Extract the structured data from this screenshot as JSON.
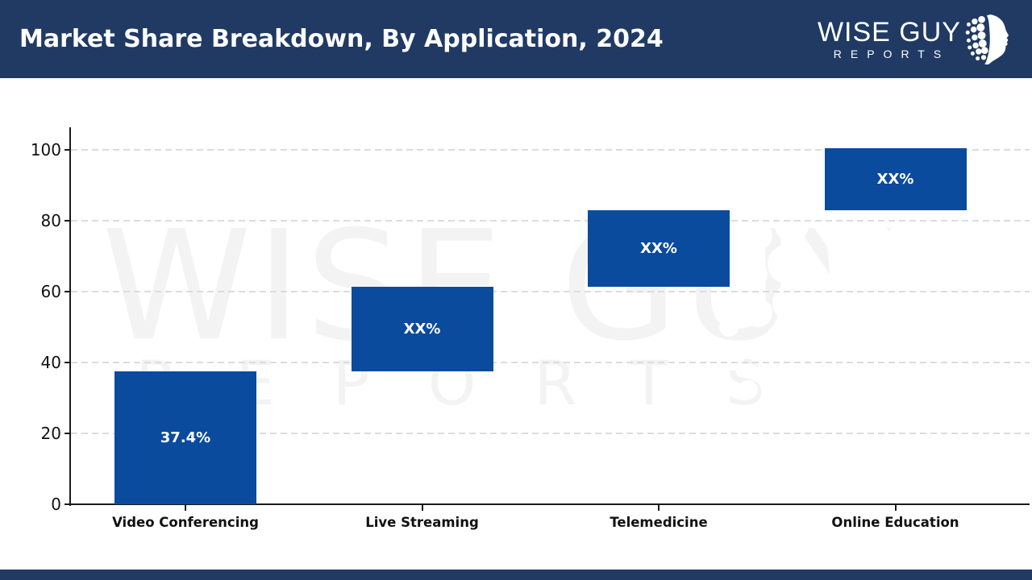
{
  "header": {
    "title": "Market Share Breakdown, By Application, 2024",
    "logo": {
      "line1": "WISE GUY",
      "line2": "REPORTS"
    }
  },
  "watermark": {
    "line1": "WISE GUY",
    "line2": "REPORTS"
  },
  "chart_data": {
    "type": "bar",
    "subtype": "waterfall-floating-bars",
    "title": "Market Share Breakdown, By Application, 2024",
    "categories": [
      "Video Conferencing",
      "Live Streaming",
      "Telemedicine",
      "Online Education"
    ],
    "segments": [
      {
        "category": "Video Conferencing",
        "start": 0,
        "end": 37.4,
        "label": "37.4%"
      },
      {
        "category": "Live Streaming",
        "start": 37.4,
        "end": 61.3,
        "label": "XX%"
      },
      {
        "category": "Telemedicine",
        "start": 61.3,
        "end": 83.0,
        "label": "XX%"
      },
      {
        "category": "Online Education",
        "start": 83.0,
        "end": 100.5,
        "label": "XX%"
      }
    ],
    "yticks": [
      0,
      20,
      40,
      60,
      80,
      100
    ],
    "ylim": [
      0,
      105
    ],
    "xlabel": "",
    "ylabel": "",
    "grid": "dashed-horizontal",
    "legend": "none"
  },
  "colors": {
    "header_bg": "#203a64",
    "footer_bg": "#203a64",
    "bar": "#0a4b9e",
    "grid": "#dcdcdc",
    "axis": "#1a1a1a",
    "value_label": "#ffffff",
    "watermark": "#f3f3f3"
  }
}
